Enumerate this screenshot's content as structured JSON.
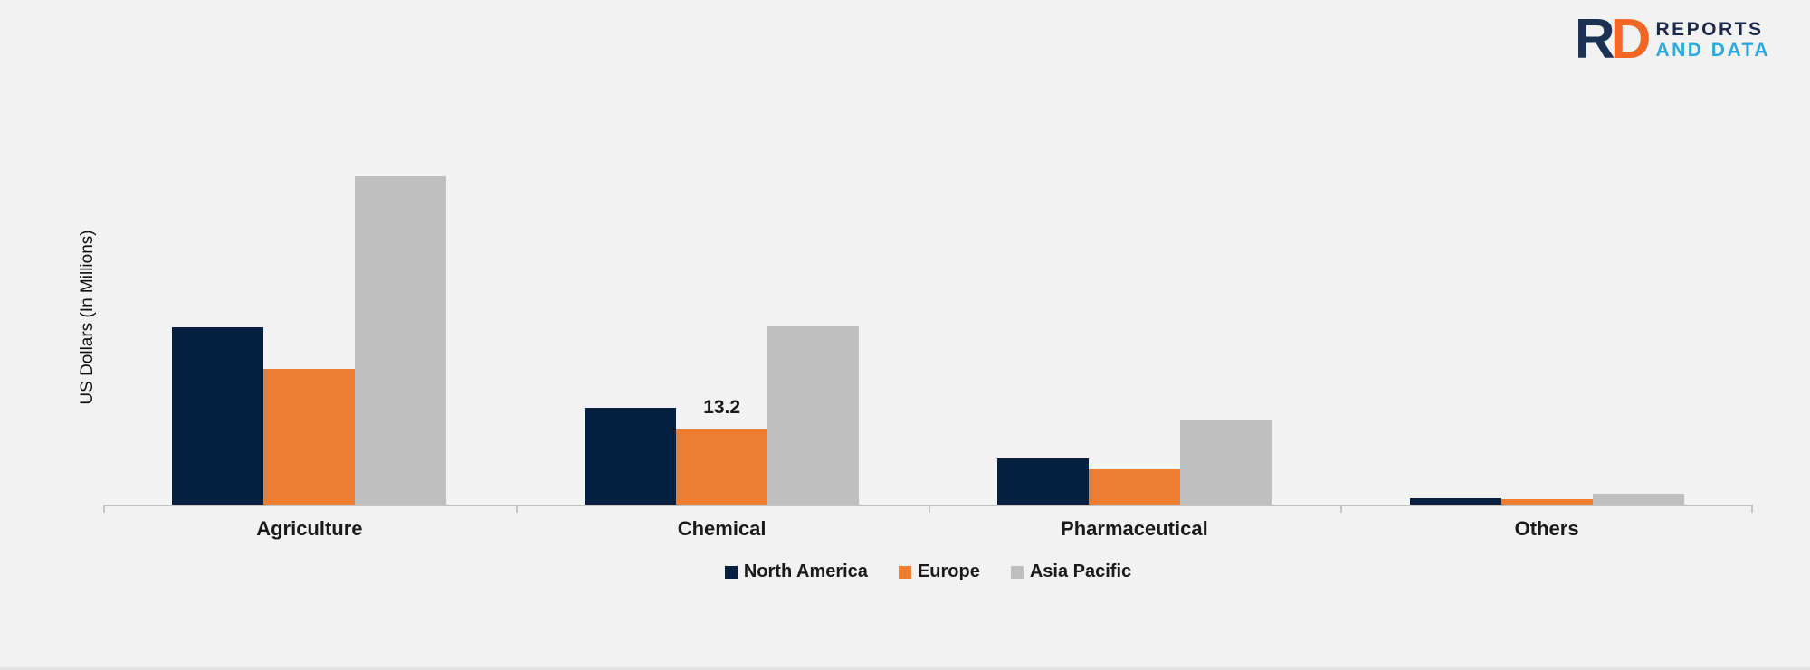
{
  "logo": {
    "mark_r": "R",
    "mark_d": "D",
    "line1": "REPORTS",
    "line2": "AND DATA",
    "colors": {
      "mark_r": "#1d3153",
      "mark_d": "#f26522",
      "line1": "#1b2a4a",
      "line2": "#2baae2"
    }
  },
  "chart_data": {
    "type": "bar",
    "title": "",
    "ylabel": "US Dollars (In Millions)",
    "xlabel": "",
    "categories": [
      "Agriculture",
      "Chemical",
      "Pharmaceutical",
      "Others"
    ],
    "series": [
      {
        "name": "North America",
        "color": "#06213f",
        "values": [
          31.2,
          17.0,
          8.1,
          1.1
        ]
      },
      {
        "name": "Europe",
        "color": "#ed7d31",
        "values": [
          23.9,
          13.2,
          6.2,
          1.0
        ]
      },
      {
        "name": "Asia Pacific",
        "color": "#bfbfbf",
        "values": [
          57.7,
          31.5,
          14.9,
          1.9
        ]
      }
    ],
    "data_labels": [
      {
        "category": "Chemical",
        "series": "Europe",
        "text": "13.2"
      }
    ],
    "ylim": [
      0,
      66.5
    ],
    "grid": false,
    "legend_position": "bottom",
    "axis_color": "#c3c3c3",
    "background_color": "#f2f2f2"
  }
}
